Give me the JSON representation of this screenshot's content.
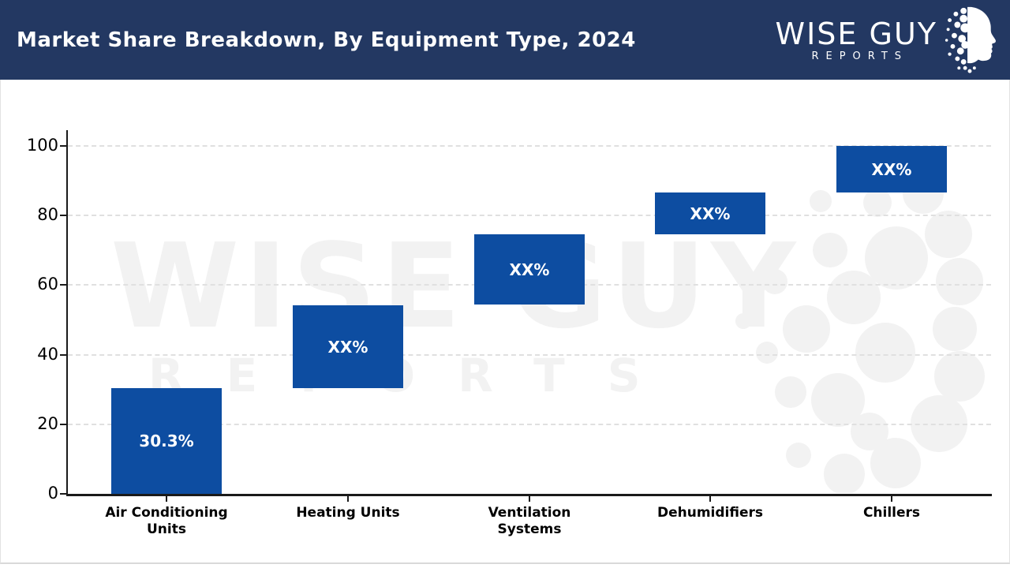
{
  "header": {
    "title": "Market Share Breakdown, By Equipment Type, 2024",
    "background": "#233862",
    "logo": {
      "line1": "WISE GUY",
      "line2": "REPORTS"
    }
  },
  "watermark": {
    "line1": "WISE GUY",
    "line2": "REPORTS"
  },
  "chart_data": {
    "type": "bar",
    "subtype": "waterfall",
    "title": "Market Share Breakdown, By Equipment Type, 2024",
    "categories": [
      "Air Conditioning Units",
      "Heating Units",
      "Ventilation Systems",
      "Dehumidifiers",
      "Chillers"
    ],
    "category_label_lines": [
      [
        "Air Conditioning",
        "Units"
      ],
      [
        "Heating Units"
      ],
      [
        "Ventilation",
        "Systems"
      ],
      [
        "Dehumidifiers"
      ],
      [
        "Chillers"
      ]
    ],
    "segments": [
      {
        "category": "Air Conditioning Units",
        "start": 0,
        "end": 30.3,
        "label": "30.3%"
      },
      {
        "category": "Heating Units",
        "start": 30.3,
        "end": 54.2,
        "label": "XX%"
      },
      {
        "category": "Ventilation Systems",
        "start": 54.4,
        "end": 74.6,
        "label": "XX%"
      },
      {
        "category": "Dehumidifiers",
        "start": 74.6,
        "end": 86.6,
        "label": "XX%"
      },
      {
        "category": "Chillers",
        "start": 86.6,
        "end": 100,
        "label": "XX%"
      }
    ],
    "xlabel": "",
    "ylabel": "",
    "ylim": [
      0,
      100
    ],
    "yticks": [
      0,
      20,
      40,
      60,
      80,
      100
    ],
    "grid": "horizontal-dashed",
    "legend": "none",
    "bar_color": "#0d4da1",
    "bar_label_color": "#ffffff",
    "axis_color": "#1a1a1a"
  }
}
